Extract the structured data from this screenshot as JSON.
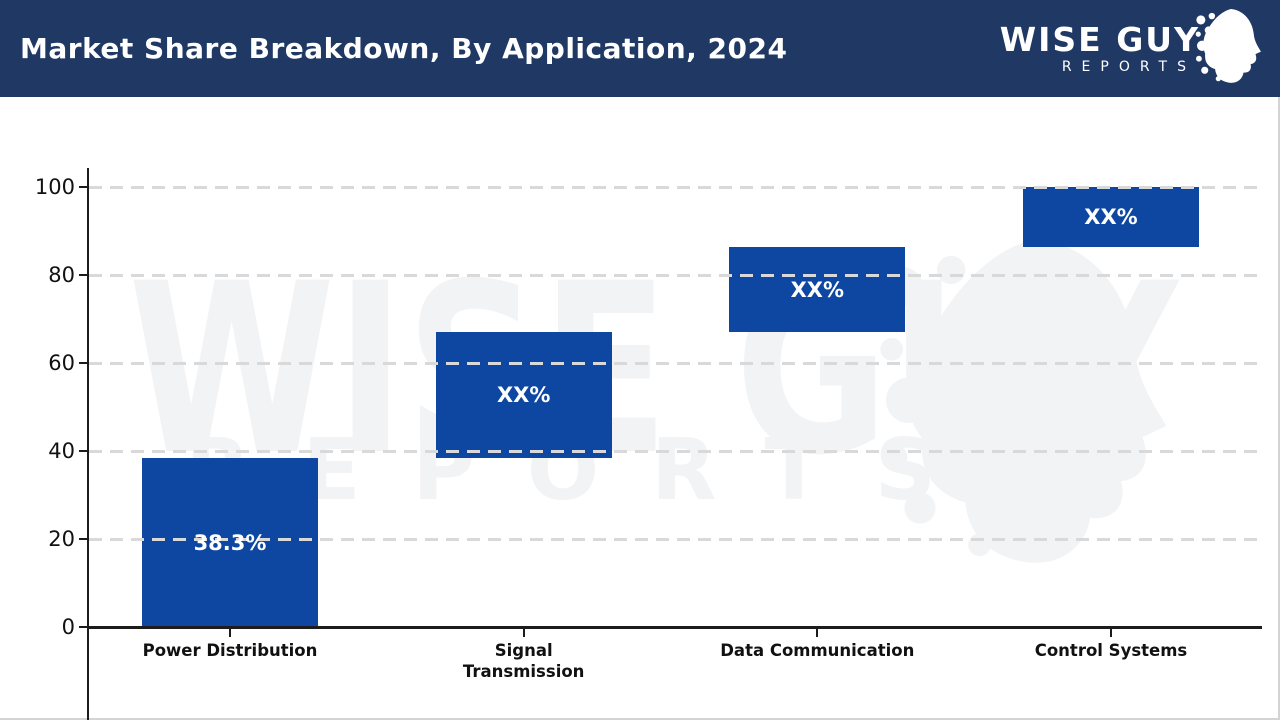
{
  "header": {
    "title": "Market Share Breakdown, By Application, 2024",
    "logo": {
      "line1": "WISE GUY",
      "line2": "REPORTS"
    }
  },
  "watermark": {
    "line1": "WISE GUY",
    "line2": "REPORTS"
  },
  "colors": {
    "header_bg": "#1f3864",
    "title_text": "#ffffff",
    "bar": "#0d47a1",
    "grid": "#d9d9d9",
    "axis": "#1c1c1c",
    "tick_text": "#111111",
    "label_on_bar": "#ffffff",
    "watermark": "#f2f3f5",
    "border": "#d4d4d4"
  },
  "chart_data": {
    "type": "bar",
    "subtype": "waterfall",
    "title": "Market Share Breakdown, By Application, 2024",
    "categories": [
      "Power Distribution",
      "Signal\nTransmission",
      "Data Communication",
      "Control Systems"
    ],
    "segments": [
      {
        "category": "Power Distribution",
        "start": 0,
        "end": 38.3,
        "label": "38.3%"
      },
      {
        "category": "Signal Transmission",
        "start": 38.3,
        "end": 67.0,
        "label": "XX%"
      },
      {
        "category": "Data Communication",
        "start": 67.0,
        "end": 86.4,
        "label": "XX%"
      },
      {
        "category": "Control Systems",
        "start": 86.4,
        "end": 100,
        "label": "XX%"
      }
    ],
    "xlabel": "",
    "ylabel": "",
    "ylim": [
      0,
      100
    ],
    "yticks": [
      0,
      20,
      40,
      60,
      80,
      100
    ],
    "grid": "horizontal-dashed",
    "legend": "none",
    "bar_color": "#0d47a1"
  }
}
